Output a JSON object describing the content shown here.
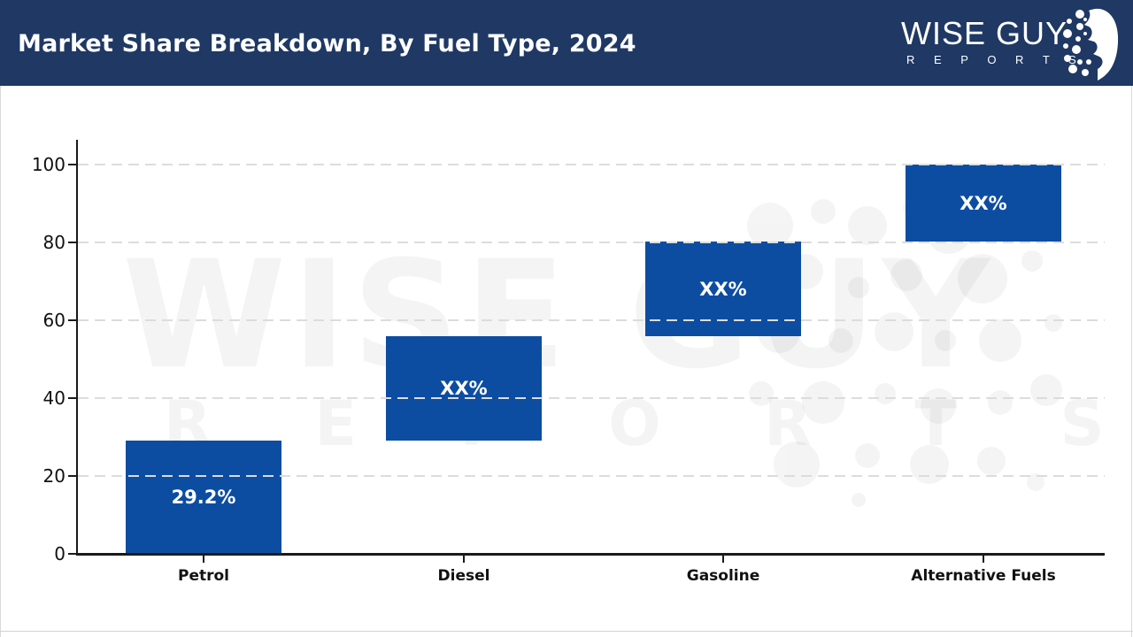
{
  "header": {
    "title": "Market Share Breakdown, By Fuel Type, 2024",
    "bg_color": "#1f3864",
    "logo": {
      "brand": "WISE GUY",
      "sub": "R E P O R T S"
    }
  },
  "watermark": {
    "line1": "WISE GUY",
    "line2": "R E P O R T S"
  },
  "chart_data": {
    "type": "bar",
    "subtype": "waterfall-floating",
    "title": "Market Share Breakdown, By Fuel Type, 2024",
    "categories": [
      "Petrol",
      "Diesel",
      "Gasoline",
      "Alternative Fuels"
    ],
    "segments": [
      {
        "category": "Petrol",
        "start": 0,
        "end": 29.2,
        "label": "29.2%"
      },
      {
        "category": "Diesel",
        "start": 29.2,
        "end": 55.9,
        "label": "XX%"
      },
      {
        "category": "Gasoline",
        "start": 55.9,
        "end": 80.2,
        "label": "XX%"
      },
      {
        "category": "Alternative Fuels",
        "start": 80.2,
        "end": 100,
        "label": "XX%"
      }
    ],
    "yticks": [
      0,
      20,
      40,
      60,
      80,
      100
    ],
    "ylim": [
      0,
      106
    ],
    "xlabel": "",
    "ylabel": "",
    "bar_color": "#0c4da2",
    "bar_label_color": "#ffffff",
    "grid": true,
    "gridline_style": "dashed",
    "gridline_color": "#dcdcdc",
    "legend": false
  }
}
